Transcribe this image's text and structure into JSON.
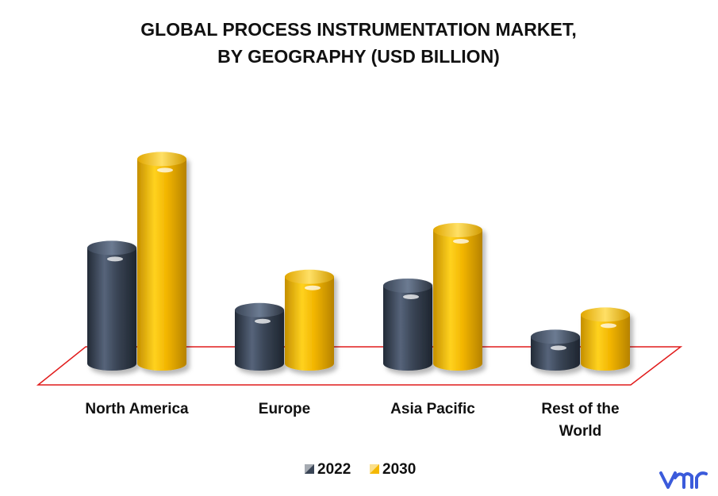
{
  "chart_data": {
    "type": "bar",
    "title": "GLOBAL PROCESS INSTRUMENTATION MARKET, BY GEOGRAPHY (USD BILLION)",
    "title_lines": [
      "GLOBAL PROCESS INSTRUMENTATION MARKET,",
      "BY GEOGRAPHY (USD BILLION)"
    ],
    "categories": [
      "North America",
      "Europe",
      "Asia Pacific",
      "Rest of the World"
    ],
    "category_lines": [
      [
        "North America"
      ],
      [
        "Europe"
      ],
      [
        "Asia Pacific"
      ],
      [
        "Rest of the",
        "World"
      ]
    ],
    "series": [
      {
        "name": "2022",
        "color": "#3a4556",
        "values": [
          5.2,
          2.4,
          3.5,
          1.2
        ]
      },
      {
        "name": "2030",
        "color": "#f4b800",
        "values": [
          9.2,
          3.9,
          6.0,
          2.2
        ]
      }
    ],
    "ylim": [
      0,
      10
    ],
    "grid": false,
    "legend_position": "bottom",
    "floor_outline_color": "#e11b1b"
  },
  "brand": {
    "logo": "vmr",
    "logo_color": "#3b5bdb"
  }
}
